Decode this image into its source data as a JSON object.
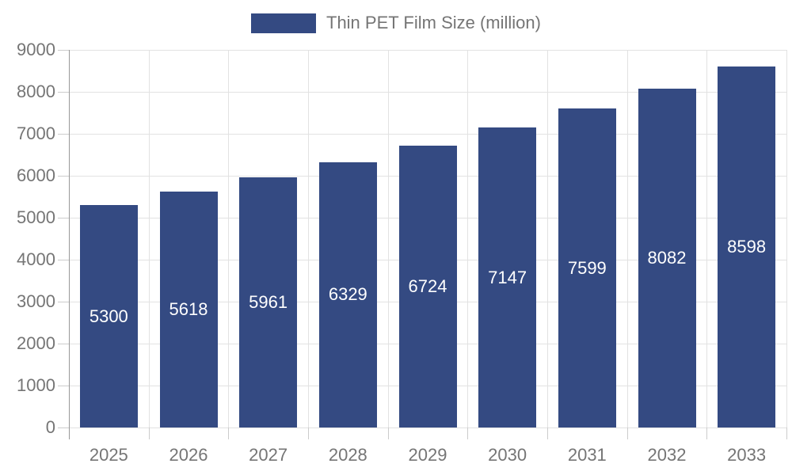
{
  "chart_data": {
    "type": "bar",
    "title": "",
    "legend": {
      "label": "Thin PET Film Size (million)",
      "position": "top-center"
    },
    "categories": [
      "2025",
      "2026",
      "2027",
      "2028",
      "2029",
      "2030",
      "2031",
      "2032",
      "2033"
    ],
    "series": [
      {
        "name": "Thin PET Film Size (million)",
        "values": [
          5300,
          5618,
          5961,
          6329,
          6724,
          7147,
          7599,
          8082,
          8598
        ]
      }
    ],
    "xlabel": "",
    "ylabel": "",
    "ylim": [
      0,
      9000
    ],
    "yticks": [
      0,
      1000,
      2000,
      3000,
      4000,
      5000,
      6000,
      7000,
      8000,
      9000
    ],
    "grid": true,
    "value_labels": "inside-middle",
    "colors": {
      "bar": "#344A82",
      "grid": "#e2e2e2",
      "tick": "#cccccc",
      "axis": "#999999",
      "text": "#757575",
      "value_text": "#ffffff",
      "background": "#ffffff"
    }
  }
}
